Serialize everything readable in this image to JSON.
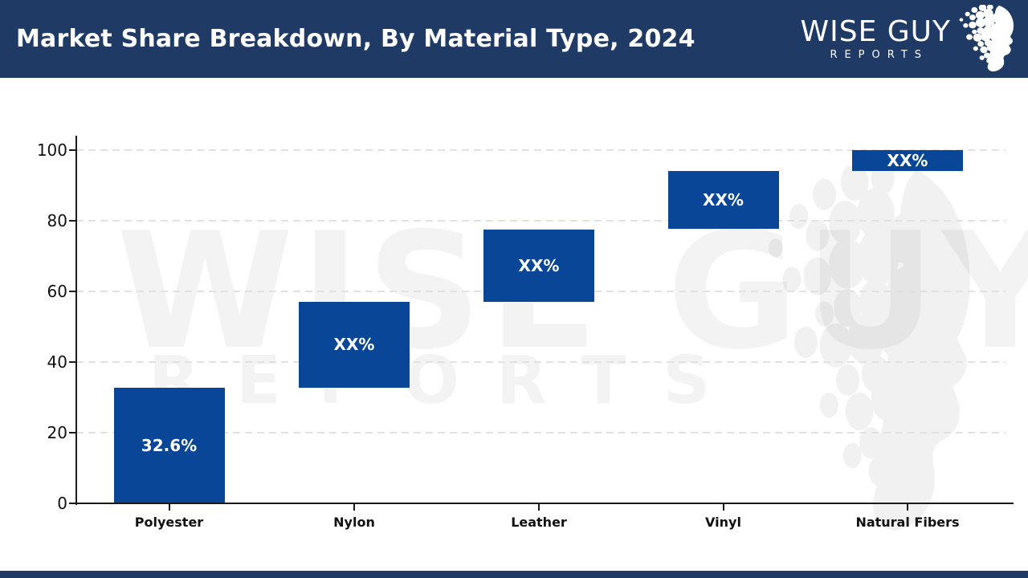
{
  "header": {
    "title": "Market Share Breakdown, By Material Type, 2024",
    "logo": {
      "line1": "WISE GUY",
      "line2": "REPORTS"
    }
  },
  "watermark": {
    "line1": "WISE GUY",
    "line2": "REPORTS"
  },
  "footer": {},
  "chart_data": {
    "type": "bar",
    "subtype": "waterfall",
    "title": "Market Share Breakdown, By Material Type, 2024",
    "categories": [
      "Polyester",
      "Nylon",
      "Leather",
      "Vinyl",
      "Natural Fibers"
    ],
    "yticks": [
      0,
      20,
      40,
      60,
      80,
      100
    ],
    "ylim": [
      0,
      105
    ],
    "grid": "horizontal-dashed",
    "bar_color": "#0a4697",
    "series": [
      {
        "name": "Market Share",
        "segments": [
          {
            "category": "Polyester",
            "start": 0,
            "end": 32.6,
            "label": "32.6%"
          },
          {
            "category": "Nylon",
            "start": 32.6,
            "end": 57,
            "label": "XX%"
          },
          {
            "category": "Leather",
            "start": 57,
            "end": 77.5,
            "label": "XX%"
          },
          {
            "category": "Vinyl",
            "start": 77.5,
            "end": 94,
            "label": "XX%"
          },
          {
            "category": "Natural Fibers",
            "start": 94,
            "end": 100,
            "label": "XX%"
          }
        ]
      }
    ]
  }
}
